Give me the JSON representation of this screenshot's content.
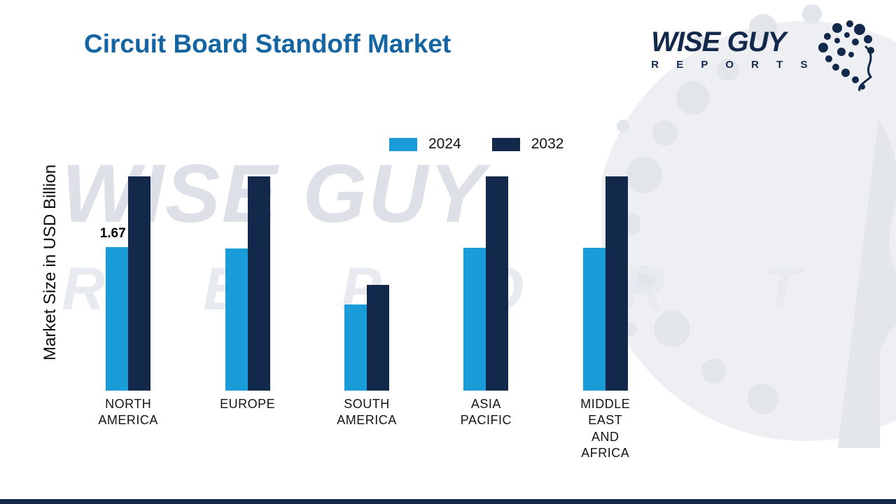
{
  "page": {
    "title": "Circuit Board Standoff Market",
    "title_color": "#1565a3",
    "bottom_bar_color": "#13294b"
  },
  "logo": {
    "line1": "WISE GUY",
    "line2": "R E P O R T S",
    "color": "#13294b",
    "head_icon": "dotted-head-profile"
  },
  "watermark": {
    "line1": "WISE GUY",
    "line2": "R E P O R T S"
  },
  "legend": {
    "items": [
      {
        "label": "2024",
        "color": "#1a9cd8"
      },
      {
        "label": "2032",
        "color": "#13294b"
      }
    ]
  },
  "chart_data": {
    "type": "bar",
    "title": "Circuit Board Standoff Market",
    "xlabel": "",
    "ylabel": "Market Size in USD Billion",
    "ylim": [
      0,
      2.6
    ],
    "grid": false,
    "legend_position": "top",
    "categories": [
      "NORTH AMERICA",
      "EUROPE",
      "SOUTH AMERICA",
      "ASIA PACIFIC",
      "MIDDLE EAST AND AFRICA"
    ],
    "categories_display": [
      [
        "NORTH",
        "AMERICA"
      ],
      [
        "EUROPE"
      ],
      [
        "SOUTH",
        "AMERICA"
      ],
      [
        "ASIA",
        "PACIFIC"
      ],
      [
        "MIDDLE",
        "EAST",
        "AND",
        "AFRICA"
      ]
    ],
    "series": [
      {
        "name": "2024",
        "color": "#1a9cd8",
        "values": [
          1.67,
          1.65,
          1.0,
          1.66,
          1.66
        ]
      },
      {
        "name": "2032",
        "color": "#13294b",
        "values": [
          2.49,
          2.49,
          1.23,
          2.49,
          2.49
        ]
      }
    ],
    "data_labels": [
      {
        "series": 0,
        "category": 0,
        "text": "1.67"
      }
    ]
  }
}
